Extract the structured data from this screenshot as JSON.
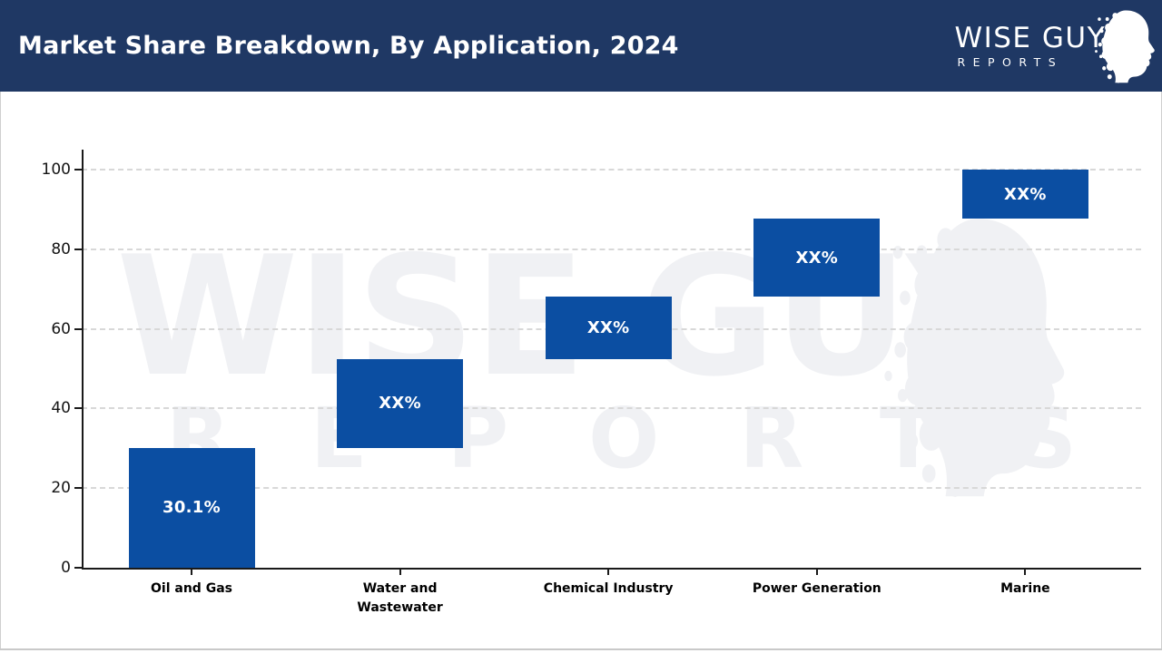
{
  "header": {
    "title": "Market Share Breakdown, By Application, 2024",
    "logo": {
      "line1": "WISE GUY",
      "line2": "REPORTS"
    }
  },
  "watermark": {
    "line1": "WISE GUY",
    "line2": "REPORTS"
  },
  "colors": {
    "header_bg": "#1F3864",
    "bar": "#0B4EA2",
    "bar_label": "#FFFFFF",
    "grid": "#D8D8D8",
    "axis": "#1A1A1A",
    "watermark": "#F0F1F4",
    "frame": "#CFCFCF"
  },
  "chart_data": {
    "type": "bar",
    "subtype": "waterfall",
    "title": "Market Share Breakdown, By Application, 2024",
    "categories": [
      "Oil and Gas",
      "Water and Wastewater",
      "Chemical Industry",
      "Power Generation",
      "Marine"
    ],
    "categories_display": [
      "Oil and Gas",
      "Water and\nWastewater",
      "Chemical Industry",
      "Power Generation",
      "Marine"
    ],
    "segments": [
      {
        "category": "Oil and Gas",
        "start": 0,
        "end": 30.1,
        "label": "30.1%"
      },
      {
        "category": "Water and Wastewater",
        "start": 30.1,
        "end": 52.4,
        "label": "XX%"
      },
      {
        "category": "Chemical Industry",
        "start": 52.4,
        "end": 68.0,
        "label": "XX%"
      },
      {
        "category": "Power Generation",
        "start": 68.0,
        "end": 87.6,
        "label": "XX%"
      },
      {
        "category": "Marine",
        "start": 87.6,
        "end": 100.0,
        "label": "XX%"
      }
    ],
    "yticks": [
      0,
      20,
      40,
      60,
      80,
      100
    ],
    "ylim": [
      0,
      105
    ],
    "xlabel": "",
    "ylabel": "",
    "grid": "horizontal-dashed",
    "legend": "none",
    "bar_color": "#0B4EA2",
    "value_label_color": "#FFFFFF"
  }
}
